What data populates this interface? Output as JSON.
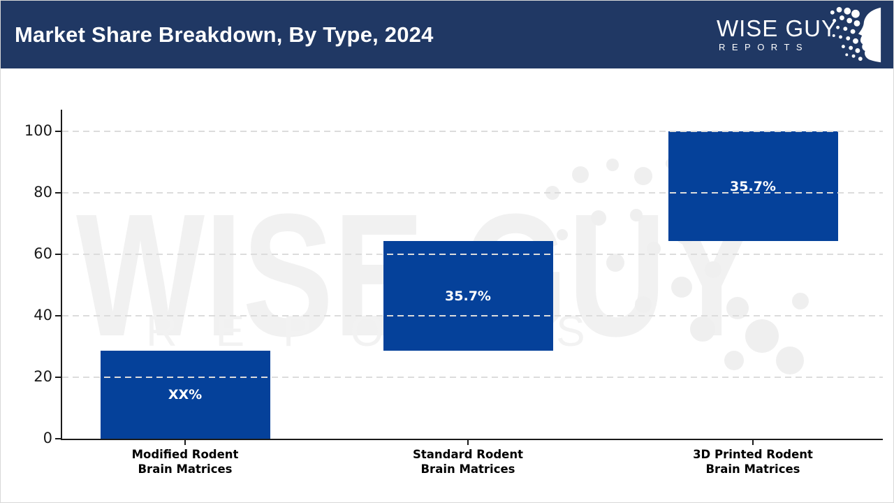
{
  "header": {
    "title": "Market Share Breakdown, By Type, 2024",
    "logo": {
      "line1": "WISE GUY",
      "line2": "REPORTS"
    },
    "bg_color": "#203864"
  },
  "watermark": {
    "line1": "WISE GUY",
    "line2": "REPORTS"
  },
  "chart_data": {
    "type": "bar",
    "subtype": "waterfall-stacked-breakdown",
    "title": "Market Share Breakdown, By Type, 2024",
    "categories": [
      {
        "line1": "Modified Rodent",
        "line2": "Brain Matrices"
      },
      {
        "line1": "Standard Rodent",
        "line2": "Brain Matrices"
      },
      {
        "line1": "3D Printed Rodent",
        "line2": "Brain Matrices"
      }
    ],
    "segments": [
      {
        "label": "XX%",
        "start": 0,
        "end": 28.6
      },
      {
        "label": "35.7%",
        "start": 28.6,
        "end": 64.3
      },
      {
        "label": "35.7%",
        "start": 64.3,
        "end": 100
      }
    ],
    "y_ticks": [
      0,
      20,
      40,
      60,
      80,
      100
    ],
    "ylim": [
      0,
      107
    ],
    "grid": "horizontal-dashed",
    "legend": "none",
    "bar_color": "#05419a",
    "value_label_color": "#ffffff",
    "axis_color": "#1a1a1a",
    "grid_color": "#dcdcdc"
  }
}
